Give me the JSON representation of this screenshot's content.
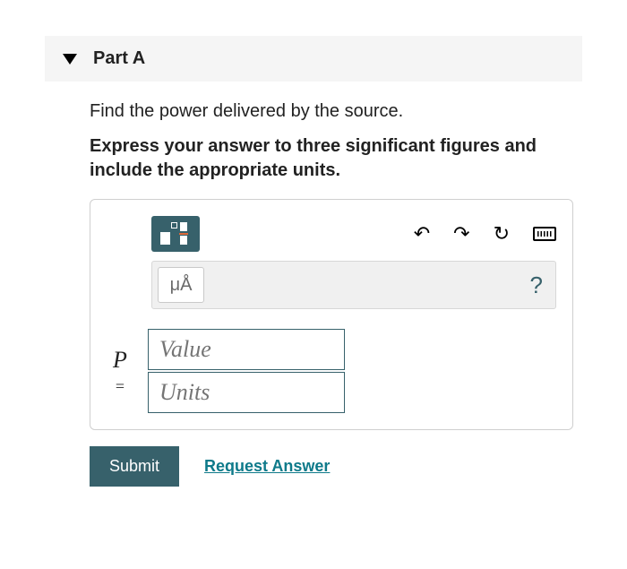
{
  "header": {
    "title": "Part A"
  },
  "prompt": "Find the power delivered by the source.",
  "instruction": "Express your answer to three significant figures and include the appropriate units.",
  "toolbar": {
    "unit_button_label": "μÅ",
    "help_label": "?"
  },
  "equation": {
    "variable": "P",
    "equals": "=",
    "value_placeholder": "Value",
    "units_placeholder": "Units"
  },
  "actions": {
    "submit_label": "Submit",
    "request_label": "Request Answer"
  },
  "colors": {
    "accent": "#37616b",
    "link": "#0e7a8a",
    "header_bg": "#f5f5f5",
    "box_border": "#cfcfcf",
    "field_border": "#37616b",
    "placeholder": "#b6b6b6"
  }
}
